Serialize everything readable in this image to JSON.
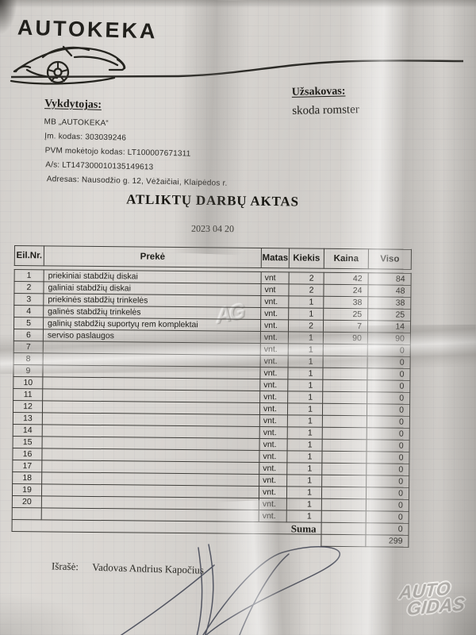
{
  "logo": {
    "company": "AUTOKEKA",
    "car_icon": "car-sketch"
  },
  "parties": {
    "executor": {
      "heading": "Vykdytojas:",
      "lines": [
        "MB „AUTOKEKA“",
        "Įm. kodas: 303039246",
        "PVM mokėtojo kodas: LT100007671311",
        "A/s: LT147300010135149613",
        "Adresas: Nausodžio g. 12, Vėžaičiai, Klaipėdos r."
      ]
    },
    "customer": {
      "heading": "Užsakovas:",
      "value": "skoda romster"
    }
  },
  "document": {
    "title": "ATLIKTŲ DARBŲ AKTAS",
    "date": "2023 04 20"
  },
  "table": {
    "headers": [
      "Eil.Nr.",
      "Prekė",
      "Matas",
      "Kiekis",
      "Kaina",
      "Viso"
    ],
    "rows": [
      {
        "nr": "1",
        "preke": "priekiniai stabdžių diskai",
        "matas": "vnt",
        "kiekis": "2",
        "kaina": "42",
        "viso": "84"
      },
      {
        "nr": "2",
        "preke": "galiniai stabdžių diskai",
        "matas": "vnt",
        "kiekis": "2",
        "kaina": "24",
        "viso": "48"
      },
      {
        "nr": "3",
        "preke": "priekinės stabdžių trinkelės",
        "matas": "vnt.",
        "kiekis": "1",
        "kaina": "38",
        "viso": "38"
      },
      {
        "nr": "4",
        "preke": "galinės stabdžių trinkelės",
        "matas": "vnt.",
        "kiekis": "1",
        "kaina": "25",
        "viso": "25"
      },
      {
        "nr": "5",
        "preke": "galinių stabdžių suportyų rem komplektai",
        "matas": "vnt.",
        "kiekis": "2",
        "kaina": "7",
        "viso": "14"
      },
      {
        "nr": "6",
        "preke": "serviso paslaugos",
        "matas": "vnt.",
        "kiekis": "1",
        "kaina": "90",
        "viso": "90"
      },
      {
        "nr": "7",
        "preke": "",
        "matas": "vnt.",
        "kiekis": "1",
        "kaina": "",
        "viso": "0"
      },
      {
        "nr": "8",
        "preke": "",
        "matas": "vnt.",
        "kiekis": "1",
        "kaina": "",
        "viso": "0"
      },
      {
        "nr": "9",
        "preke": "",
        "matas": "vnt.",
        "kiekis": "1",
        "kaina": "",
        "viso": "0"
      },
      {
        "nr": "10",
        "preke": "",
        "matas": "vnt.",
        "kiekis": "1",
        "kaina": "",
        "viso": "0"
      },
      {
        "nr": "11",
        "preke": "",
        "matas": "vnt.",
        "kiekis": "1",
        "kaina": "",
        "viso": "0"
      },
      {
        "nr": "12",
        "preke": "",
        "matas": "vnt.",
        "kiekis": "1",
        "kaina": "",
        "viso": "0"
      },
      {
        "nr": "13",
        "preke": "",
        "matas": "vnt.",
        "kiekis": "1",
        "kaina": "",
        "viso": "0"
      },
      {
        "nr": "14",
        "preke": "",
        "matas": "vnt.",
        "kiekis": "1",
        "kaina": "",
        "viso": "0"
      },
      {
        "nr": "15",
        "preke": "",
        "matas": "vnt.",
        "kiekis": "1",
        "kaina": "",
        "viso": "0"
      },
      {
        "nr": "16",
        "preke": "",
        "matas": "vnt.",
        "kiekis": "1",
        "kaina": "",
        "viso": "0"
      },
      {
        "nr": "17",
        "preke": "",
        "matas": "vnt.",
        "kiekis": "1",
        "kaina": "",
        "viso": "0"
      },
      {
        "nr": "18",
        "preke": "",
        "matas": "vnt.",
        "kiekis": "1",
        "kaina": "",
        "viso": "0"
      },
      {
        "nr": "19",
        "preke": "",
        "matas": "vnt.",
        "kiekis": "1",
        "kaina": "",
        "viso": "0"
      },
      {
        "nr": "20",
        "preke": "",
        "matas": "vnt.",
        "kiekis": "1",
        "kaina": "",
        "viso": "0"
      },
      {
        "nr": "",
        "preke": "",
        "matas": "vnt.",
        "kiekis": "1",
        "kaina": "",
        "viso": "0"
      }
    ],
    "suma_label": "Suma",
    "suma_value": "0",
    "total_value": "299"
  },
  "footer": {
    "issued_label": "Išrašė:",
    "issued_by": "Vadovas Andrius Kapočius"
  },
  "watermarks": {
    "center": "AG",
    "corner_line1": "AUTO",
    "corner_line2": "GIDAS"
  },
  "colors": {
    "paper": "#d8d5d1",
    "ink": "#21201c",
    "table_border": "#3f3e3a",
    "pen": "#3d4150"
  }
}
